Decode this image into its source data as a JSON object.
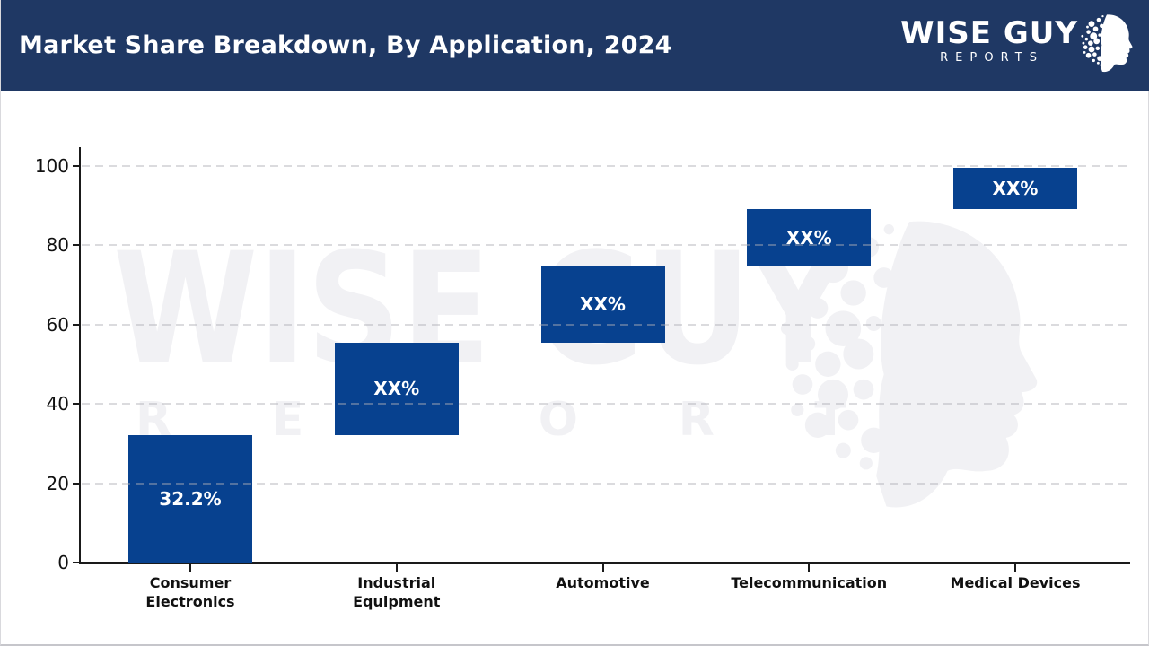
{
  "header": {
    "title": "Market Share Breakdown, By Application, 2024",
    "logo_line1": "WISE GUY",
    "logo_line2": "REPORTS"
  },
  "watermark": {
    "line1": "WISE GUY",
    "line2": "R E P O R T S"
  },
  "colors": {
    "header_bg": "#1f3864",
    "bar": "#07418f",
    "bar_label": "#ffffff",
    "axis": "#1a1a1a",
    "gridline": "#dcdce0",
    "watermark": "#f1f1f4"
  },
  "chart_data": {
    "type": "bar",
    "variant": "waterfall",
    "title": "Market Share Breakdown, By Application, 2024",
    "xlabel": "",
    "ylabel": "",
    "ylim": [
      0,
      105
    ],
    "yticks": [
      0,
      20,
      40,
      60,
      80,
      100
    ],
    "grid": {
      "axis": "y",
      "style": "dashed",
      "position": "over-bars"
    },
    "legend": "none",
    "categories": [
      "Consumer Electronics",
      "Industrial Equipment",
      "Automotive",
      "Telecommunication",
      "Medical Devices"
    ],
    "x_tick_label_lines": [
      [
        "Consumer",
        "Electronics"
      ],
      [
        "Industrial",
        "Equipment"
      ],
      [
        "Automotive"
      ],
      [
        "Telecommunication"
      ],
      [
        "Medical Devices"
      ]
    ],
    "segments": [
      {
        "category": "Consumer Electronics",
        "start": 0,
        "end": 32.2,
        "label": "32.2%"
      },
      {
        "category": "Industrial Equipment",
        "start": 32.2,
        "end": 55.5,
        "label": "XX%"
      },
      {
        "category": "Automotive",
        "start": 55.5,
        "end": 74.6,
        "label": "XX%"
      },
      {
        "category": "Telecommunication",
        "start": 74.6,
        "end": 89.1,
        "label": "XX%"
      },
      {
        "category": "Medical Devices",
        "start": 89.1,
        "end": 99.6,
        "label": "XX%"
      }
    ]
  }
}
